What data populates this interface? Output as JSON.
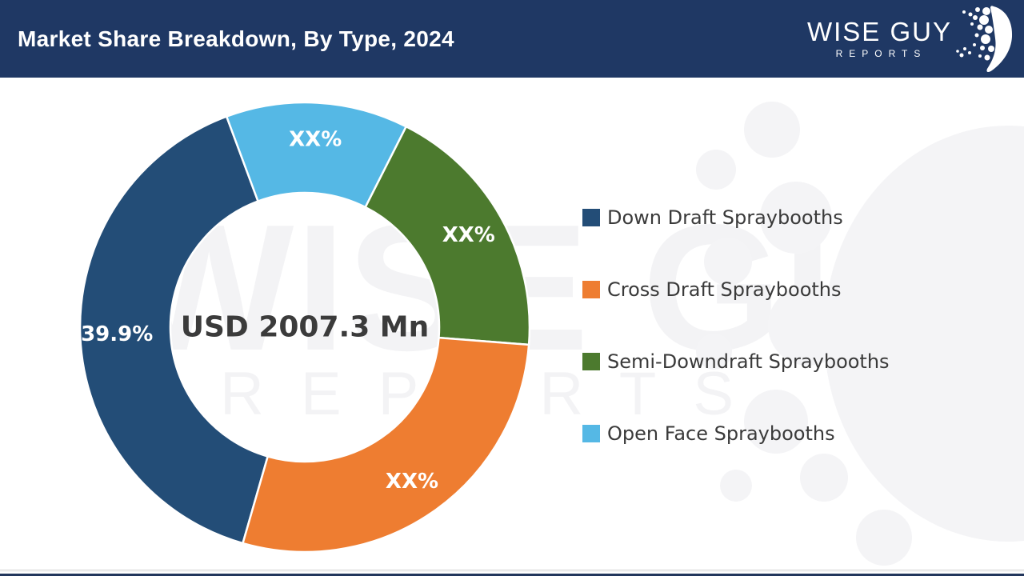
{
  "header": {
    "title": "Market Share Breakdown, By Type, 2024",
    "logo": {
      "name": "WISE GUY",
      "subtitle": "REPORTS"
    }
  },
  "watermark": {
    "title": "WISE GUY",
    "subtitle": "REPORTS"
  },
  "chart_data": {
    "type": "pie",
    "subtype": "donut",
    "title": "Market Share Breakdown, By Type, 2024",
    "center_label": "USD 2007.3 Mn",
    "start_angle_deg": 196,
    "draw_order": [
      0,
      3,
      2,
      1
    ],
    "legend_position": "right",
    "series": [
      {
        "name": "Down Draft Spraybooths",
        "label": "39.9%",
        "value": 39.9,
        "color": "#234D77"
      },
      {
        "name": "Cross Draft Spraybooths",
        "label": "XX%",
        "value": 28.2,
        "color": "#EE7D31"
      },
      {
        "name": "Semi-Downdraft Spraybooths",
        "label": "XX%",
        "value": 18.8,
        "color": "#4C7A2E"
      },
      {
        "name": "Open Face Spraybooths",
        "label": "XX%",
        "value": 13.1,
        "color": "#55B8E5"
      }
    ]
  }
}
